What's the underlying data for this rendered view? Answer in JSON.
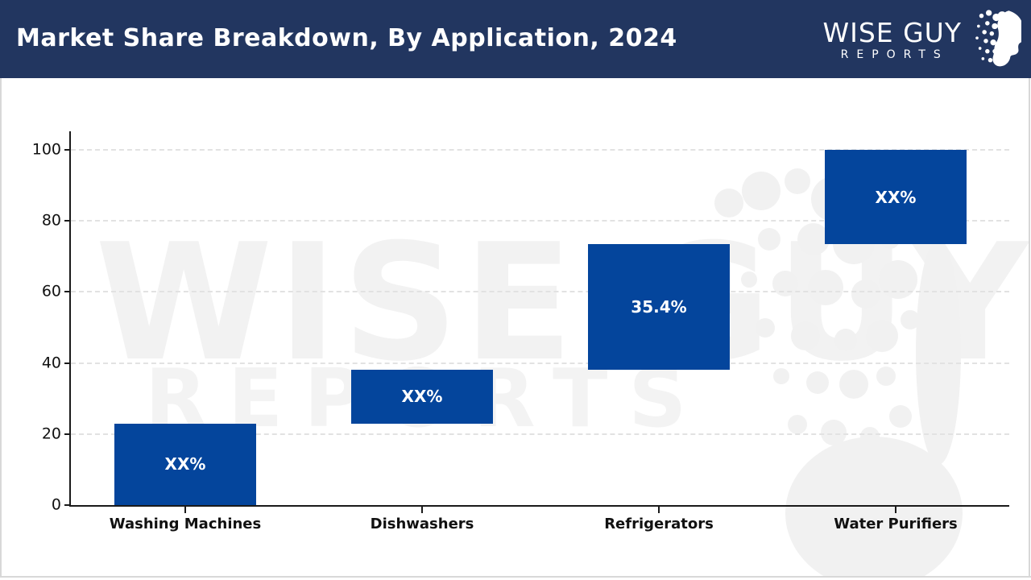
{
  "header": {
    "title": "Market Share Breakdown, By Application, 2024",
    "background": "#223660",
    "logo": {
      "wordmark": "WISE GUY",
      "subtitle": "REPORTS"
    }
  },
  "watermark": {
    "line1": "WISE GUY",
    "line2": "REPORTS"
  },
  "chart_data": {
    "type": "bar",
    "subtype": "floating-waterfall",
    "title": "Market Share Breakdown, By Application, 2024",
    "categories": [
      "Washing Machines",
      "Dishwashers",
      "Refrigerators",
      "Water Purifiers"
    ],
    "series": [
      {
        "category": "Washing Machines",
        "start": 0,
        "end": 23,
        "label": "XX%"
      },
      {
        "category": "Dishwashers",
        "start": 23,
        "end": 38,
        "label": "XX%"
      },
      {
        "category": "Refrigerators",
        "start": 38,
        "end": 73.4,
        "label": "35.4%"
      },
      {
        "category": "Water Purifiers",
        "start": 73.4,
        "end": 100,
        "label": "XX%"
      }
    ],
    "ylim": [
      0,
      100
    ],
    "yticks": [
      0,
      20,
      40,
      60,
      80,
      100
    ],
    "xlabel": "",
    "ylabel": "",
    "grid": "horizontal-dashed",
    "legend": "none",
    "bar_color": "#04459c",
    "bar_label_color": "#ffffff"
  }
}
